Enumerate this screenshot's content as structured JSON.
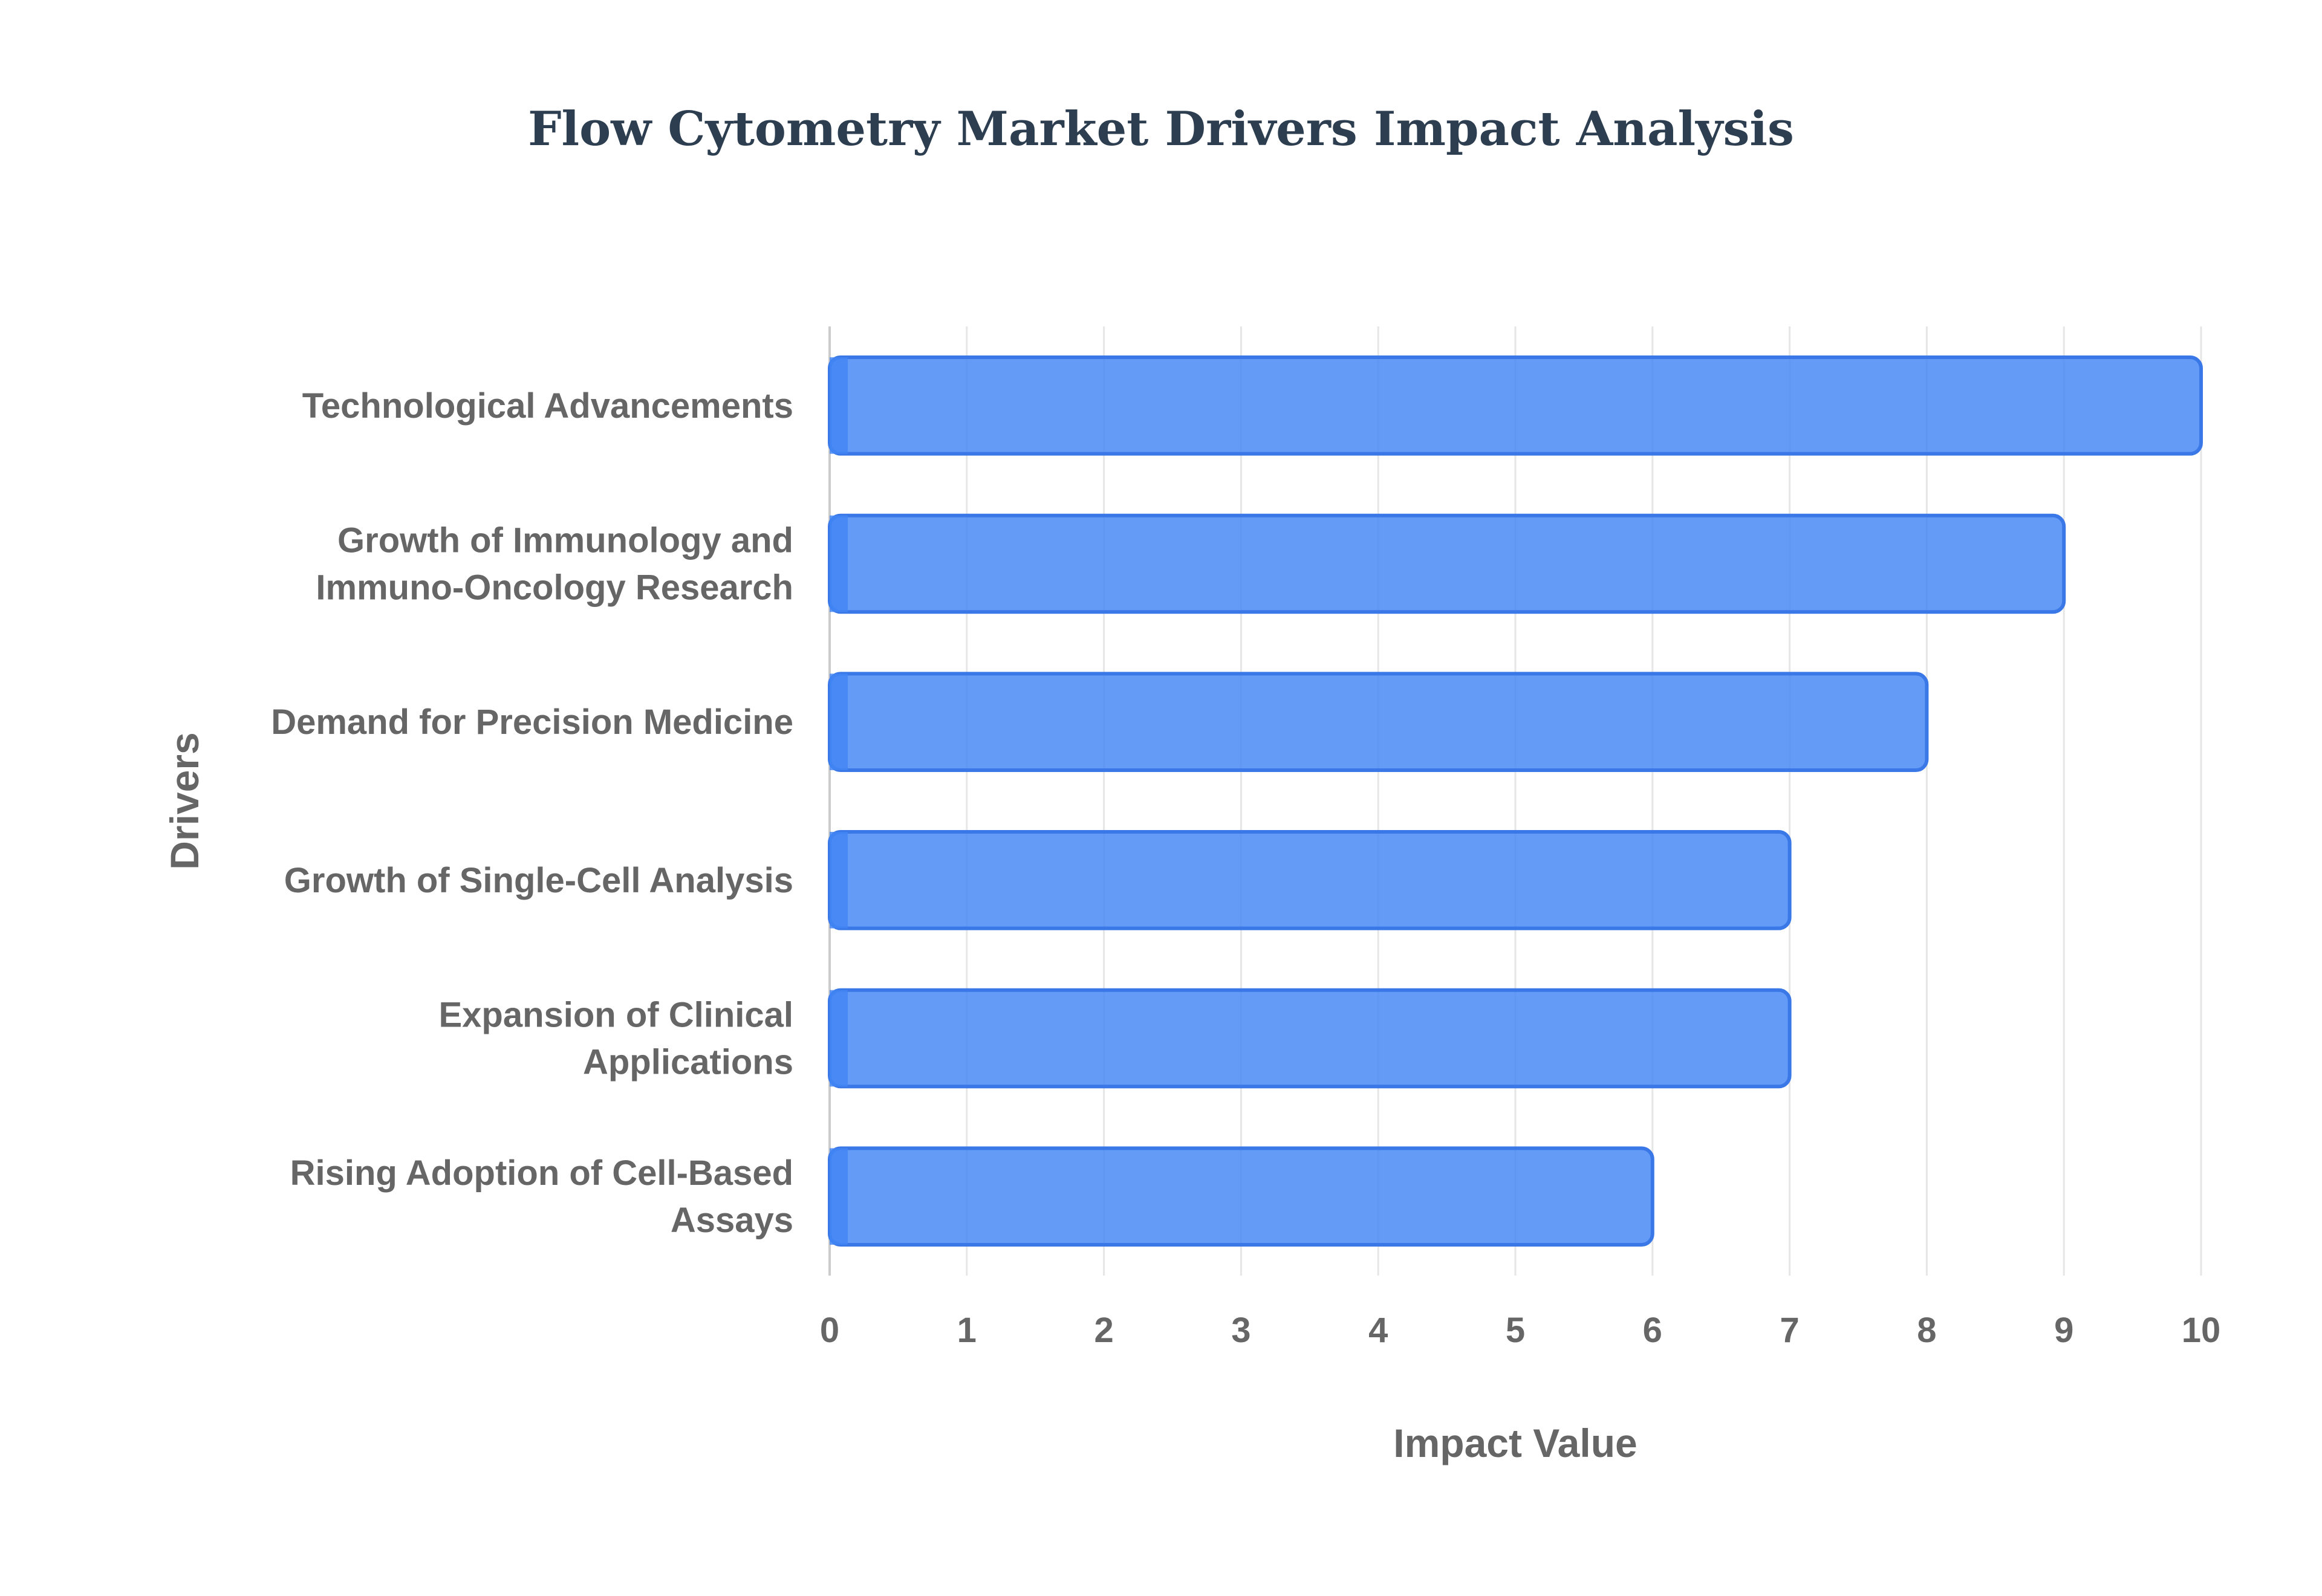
{
  "chart_data": {
    "type": "bar",
    "orientation": "horizontal",
    "title": "Flow Cytometry Market Drivers Impact Analysis",
    "xlabel": "Impact Value",
    "ylabel": "Drivers",
    "categories": [
      "Technological Advancements",
      "Growth of Immunology and Immuno-Oncology Research",
      "Demand for Precision Medicine",
      "Growth of Single-Cell Analysis",
      "Expansion of Clinical Applications",
      "Rising Adoption of Cell-Based Assays"
    ],
    "category_lines": [
      [
        "Technological Advancements"
      ],
      [
        "Growth of Immunology and",
        "Immuno-Oncology Research"
      ],
      [
        "Demand for Precision Medicine"
      ],
      [
        "Growth of Single-Cell Analysis"
      ],
      [
        "Expansion of Clinical",
        "Applications"
      ],
      [
        "Rising Adoption of Cell-Based",
        "Assays"
      ]
    ],
    "values": [
      10,
      9,
      8,
      7,
      7,
      6
    ],
    "xlim": [
      0,
      10
    ],
    "xticks": [
      "0",
      "1",
      "2",
      "3",
      "4",
      "5",
      "6",
      "7",
      "8",
      "9",
      "10"
    ],
    "grid": true,
    "legend": "none",
    "colors": {
      "bar_fill": "#4285f4",
      "bar_stroke": "#3b78e7",
      "grid": "#e6e6e6",
      "axis": "#cccccc",
      "title": "#2c3e50",
      "text": "#666666"
    }
  }
}
